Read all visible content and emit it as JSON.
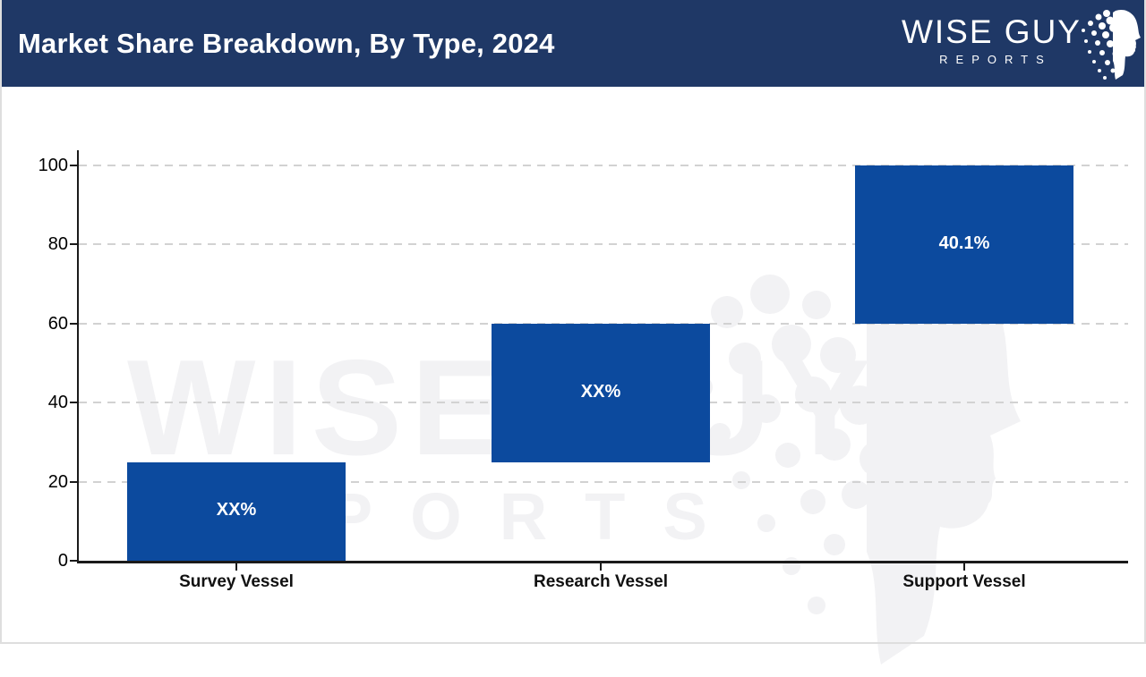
{
  "header": {
    "title": "Market Share Breakdown, By Type, 2024",
    "bg_color": "#1f3866",
    "logo": {
      "line1": "WISE GUY",
      "line2": "REPORTS"
    }
  },
  "watermark": {
    "line1": "WISE GUY",
    "line2": "REPORTS"
  },
  "chart_data": {
    "type": "bar",
    "subtype": "waterfall-floating-bars",
    "title": "Market Share Breakdown, By Type, 2024",
    "categories": [
      "Survey Vessel",
      "Research Vessel",
      "Support Vessel"
    ],
    "values": [
      24.8,
      35.2,
      40.1
    ],
    "segments": [
      {
        "category": "Survey Vessel",
        "start": 0,
        "end": 24.8,
        "label": "XX%"
      },
      {
        "category": "Research Vessel",
        "start": 24.8,
        "end": 60,
        "label": "XX%"
      },
      {
        "category": "Support Vessel",
        "start": 59.9,
        "end": 100,
        "label": "40.1%"
      }
    ],
    "xlabel": "",
    "ylabel": "",
    "ylim": [
      0,
      100
    ],
    "yticks": [
      0,
      20,
      40,
      60,
      80,
      100
    ],
    "grid": "horizontal-dashed",
    "legend": "none",
    "colors": {
      "bar": "#0c4a9e",
      "axis": "#1a1a1a",
      "gridline": "#d2d2d2",
      "bar_label_text": "#ffffff",
      "watermark": "#f2f2f4"
    }
  }
}
